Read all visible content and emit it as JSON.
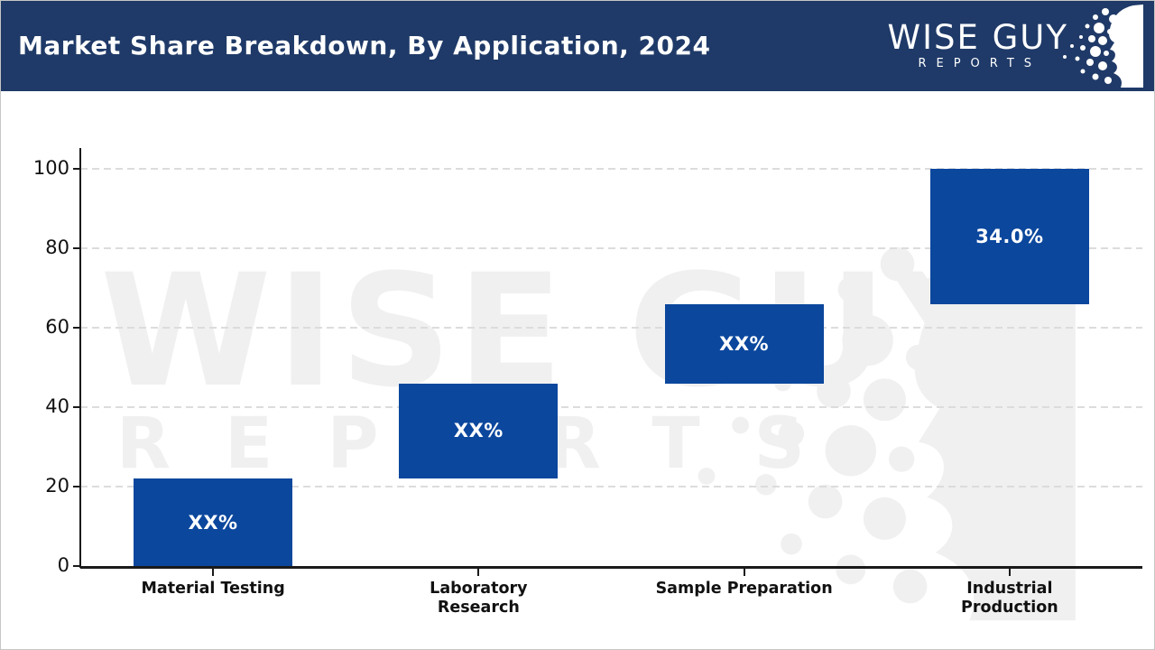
{
  "header": {
    "title": "Market Share Breakdown, By Application, 2024",
    "bg_color": "#1f3a68",
    "logo": {
      "line1": "WISE GUY",
      "line2": "REPORTS"
    }
  },
  "watermark": {
    "line1": "WISE GUY",
    "line2": "REPORTS"
  },
  "chart_data": {
    "type": "bar",
    "subtype": "floating-waterfall",
    "title": "Market Share Breakdown, By Application, 2024",
    "categories": [
      "Material Testing",
      "Laboratory\nResearch",
      "Sample Preparation",
      "Industrial\nProduction"
    ],
    "series": [
      {
        "name": "Market share (%)",
        "segments": [
          {
            "category": "Material Testing",
            "start": 0,
            "end": 22,
            "label": "XX%"
          },
          {
            "category": "Laboratory Research",
            "start": 22,
            "end": 46,
            "label": "XX%"
          },
          {
            "category": "Sample Preparation",
            "start": 46,
            "end": 66,
            "label": "XX%"
          },
          {
            "category": "Industrial Production",
            "start": 66,
            "end": 100,
            "label": "34.0%"
          }
        ]
      }
    ],
    "xlabel": "",
    "ylabel": "",
    "ylim": [
      0,
      100
    ],
    "yticks": [
      0,
      20,
      40,
      60,
      80,
      100
    ],
    "grid": "dashed-horizontal",
    "legend": "none",
    "bar_color": "#0b479d",
    "bar_label_color": "#ffffff",
    "axis_color": "#1a1a1a",
    "gridline_color": "#dcdcdc"
  }
}
